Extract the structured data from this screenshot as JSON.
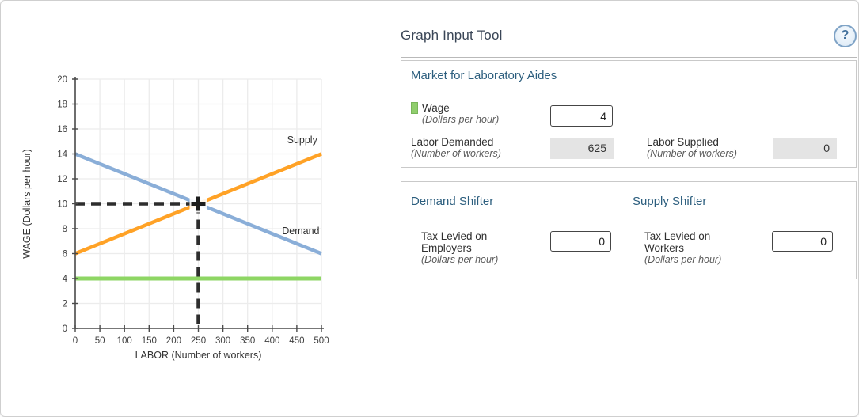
{
  "header": {
    "title": "Graph Input Tool",
    "help_label": "?"
  },
  "market_panel": {
    "title": "Market for Laboratory Aides",
    "wage": {
      "label": "Wage",
      "sublabel": "(Dollars per hour)",
      "value": "4"
    },
    "labor_demanded": {
      "label": "Labor Demanded",
      "sublabel": "(Number of workers)",
      "value": "625"
    },
    "labor_supplied": {
      "label": "Labor Supplied",
      "sublabel": "(Number of workers)",
      "value": "0"
    }
  },
  "shifter_panel": {
    "demand_title": "Demand Shifter",
    "supply_title": "Supply Shifter",
    "tax_employers": {
      "label": "Tax Levied on Employers",
      "sublabel": "(Dollars per hour)",
      "value": "0"
    },
    "tax_workers": {
      "label": "Tax Levied on Workers",
      "sublabel": "(Dollars per hour)",
      "value": "0"
    }
  },
  "chart_data": {
    "type": "line",
    "xlabel": "LABOR (Number of workers)",
    "ylabel": "WAGE (Dollars per hour)",
    "xlim": [
      0,
      500
    ],
    "ylim": [
      0,
      20
    ],
    "xticks": [
      0,
      50,
      100,
      150,
      200,
      250,
      300,
      350,
      400,
      450,
      500
    ],
    "yticks": [
      0,
      2,
      4,
      6,
      8,
      10,
      12,
      14,
      16,
      18,
      20
    ],
    "grid": true,
    "series": [
      {
        "name": "Demand",
        "color": "#8aaed8",
        "width": 4.5,
        "points": [
          [
            0,
            14
          ],
          [
            500,
            6
          ]
        ],
        "label": "Demand",
        "label_pos": [
          458,
          7.55
        ]
      },
      {
        "name": "Supply",
        "color": "#ffa226",
        "width": 4.5,
        "points": [
          [
            0,
            6
          ],
          [
            500,
            14
          ]
        ],
        "label": "Supply",
        "label_pos": [
          461,
          14.85
        ]
      },
      {
        "name": "Wage floor",
        "color": "#8ed664",
        "width": 5,
        "points": [
          [
            0,
            4
          ],
          [
            500,
            4
          ]
        ]
      }
    ],
    "equilibrium": {
      "x": 250,
      "y": 10,
      "dash_color": "#2d2d2d",
      "marker": "plus"
    },
    "colors": {
      "axis": "#4a4a4a",
      "grid": "#ececec",
      "tick_text": "#3f3f3f"
    }
  }
}
